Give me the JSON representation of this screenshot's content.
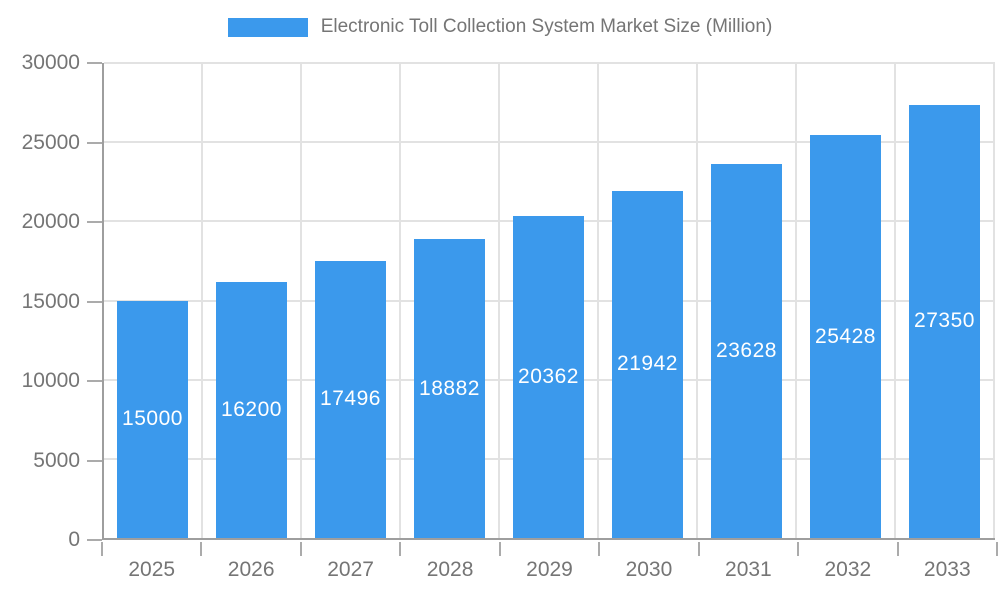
{
  "legend": {
    "label": "Electronic Toll Collection System Market Size (Million)",
    "swatch_color": "#3b99ec"
  },
  "chart_data": {
    "type": "bar",
    "title": "Electronic Toll Collection System Market Size (Million)",
    "categories": [
      "2025",
      "2026",
      "2027",
      "2028",
      "2029",
      "2030",
      "2031",
      "2032",
      "2033"
    ],
    "values": [
      15000,
      16200,
      17496,
      18882,
      20362,
      21942,
      23628,
      25428,
      27350
    ],
    "xlabel": "",
    "ylabel": "",
    "ylim": [
      0,
      30000
    ],
    "yticks": [
      0,
      5000,
      10000,
      15000,
      20000,
      25000,
      30000
    ],
    "grid": true,
    "legend_position": "top",
    "value_labels": "inside-center",
    "colors": {
      "bar": "#3b99ec",
      "value_label": "#ffffff",
      "axis_text": "#757575",
      "gridline": "#e2e2e2",
      "axis_line": "#9e9e9e",
      "tick_mark": "#ababab",
      "background": "#ffffff"
    }
  }
}
